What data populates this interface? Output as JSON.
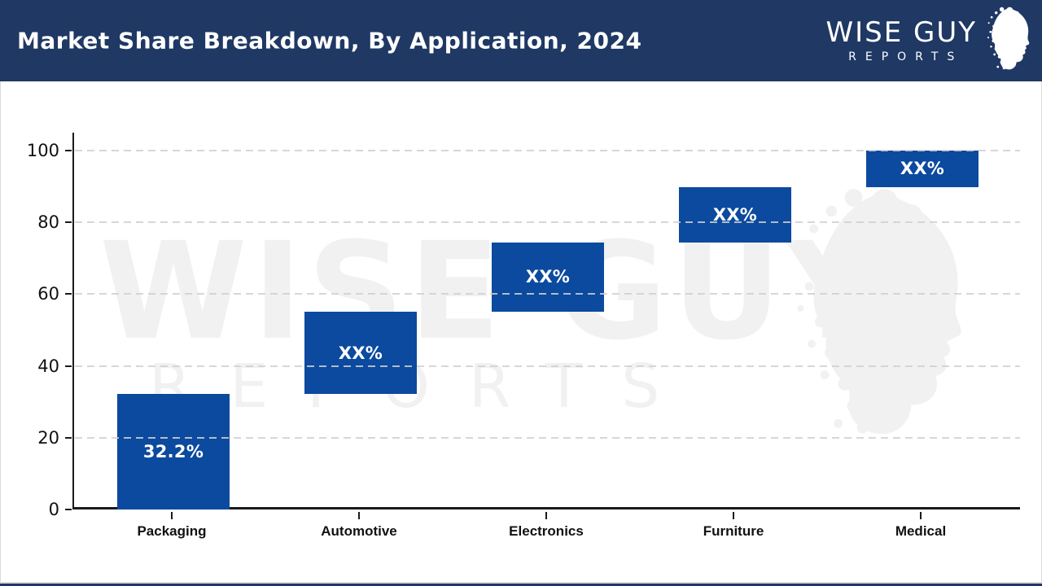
{
  "header": {
    "title": "Market Share Breakdown, By Application, 2024",
    "logo": {
      "line1": "WISE GUY",
      "line2": "REPORTS"
    }
  },
  "watermark": {
    "line1": "WISE GUY",
    "line2": "REPORTS"
  },
  "chart_data": {
    "type": "bar",
    "subtype": "floating-waterfall",
    "title": "Market Share Breakdown, By Application, 2024",
    "categories": [
      "Packaging",
      "Automotive",
      "Electronics",
      "Furniture",
      "Medical"
    ],
    "segments": [
      {
        "category": "Packaging",
        "start": 0,
        "end": 32.2,
        "label": "32.2%"
      },
      {
        "category": "Automotive",
        "start": 32.2,
        "end": 55.1,
        "label": "XX%"
      },
      {
        "category": "Electronics",
        "start": 55.1,
        "end": 74.4,
        "label": "XX%"
      },
      {
        "category": "Furniture",
        "start": 74.4,
        "end": 89.9,
        "label": "XX%"
      },
      {
        "category": "Medical",
        "start": 89.9,
        "end": 100,
        "label": "XX%"
      }
    ],
    "xlabel": "",
    "ylabel": "",
    "ylim": [
      0,
      105
    ],
    "yticks": [
      0,
      20,
      40,
      60,
      80,
      100
    ],
    "grid": "horizontal-dashed",
    "legend": "none",
    "colors": {
      "bar": "#0b4a9e",
      "bar_label_text": "#ffffff",
      "header_bg": "#1f3864",
      "grid": "#d0d0d0",
      "axis": "#1a1a1a",
      "watermark": "#f1f1f1"
    }
  }
}
